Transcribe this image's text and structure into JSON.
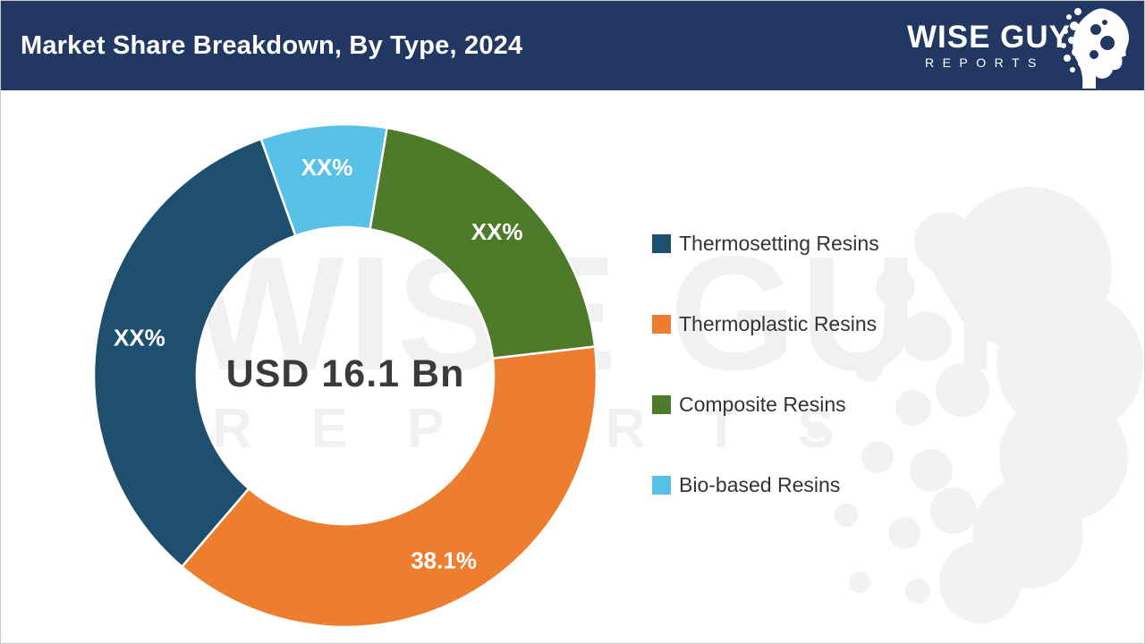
{
  "header": {
    "title": "Market Share Breakdown, By Type, 2024",
    "bg_color": "#223863"
  },
  "brand": {
    "name": "WISE GUY",
    "subtitle": "REPORTS"
  },
  "watermark": {
    "line1": "WISE GUY",
    "line2": "REPORTS"
  },
  "chart_data": {
    "type": "pie",
    "donut": true,
    "title": "Market Share Breakdown, By Type, 2024",
    "center_text": "USD 16.1 Bn",
    "start_angle_deg": -19.6,
    "inner_radius_ratio": 0.59,
    "legend_position": "right",
    "segments": [
      {
        "label": "Bio-based Resins",
        "value_pct": 8.1,
        "display_label": "XX%",
        "color": "#57c1e8"
      },
      {
        "label": "Composite Resins",
        "value_pct": 20.5,
        "display_label": "XX%",
        "color": "#4e7b2a"
      },
      {
        "label": "Thermoplastic Resins",
        "value_pct": 38.1,
        "display_label": "38.1%",
        "color": "#ed7d2f"
      },
      {
        "label": "Thermosetting Resins",
        "value_pct": 33.3,
        "display_label": "XX%",
        "color": "#1f4f6f"
      }
    ]
  },
  "legend": {
    "items": [
      {
        "label": "Thermosetting Resins",
        "color": "#1f4f6f"
      },
      {
        "label": "Thermoplastic Resins",
        "color": "#ed7d2f"
      },
      {
        "label": "Composite Resins",
        "color": "#4e7b2a"
      },
      {
        "label": "Bio-based Resins",
        "color": "#57c1e8"
      }
    ]
  }
}
